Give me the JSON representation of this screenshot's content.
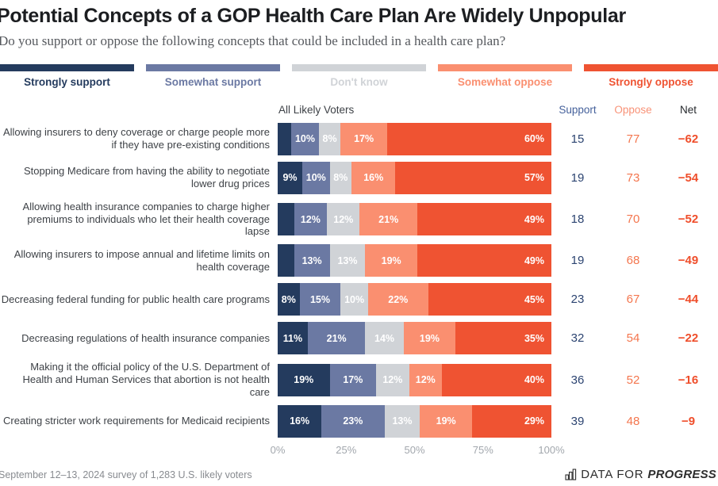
{
  "title": "Potential Concepts of a GOP Health Care Plan Are Widely Unpopular",
  "subtitle": "Do you support or oppose the following concepts that could be included in a health care plan?",
  "columns": {
    "group": "All Likely Voters",
    "support": "Support",
    "oppose": "Oppose",
    "net": "Net"
  },
  "chart_data": {
    "type": "bar",
    "variant": "stacked-horizontal",
    "series": [
      "Strongly support",
      "Somewhat support",
      "Don't know",
      "Somewhat oppose",
      "Strongly oppose"
    ],
    "series_colors": [
      "#243b5e",
      "#6b79a3",
      "#d0d3d7",
      "#fa8f70",
      "#ef5332"
    ],
    "categories": [
      "Allowing insurers to deny coverage or charge people more if they have pre-existing conditions",
      "Stopping Medicare from having the ability to negotiate lower drug prices",
      "Allowing health insurance companies to charge higher premiums to individuals who let their health coverage lapse",
      "Allowing insurers to impose annual and lifetime limits on health coverage",
      "Decreasing federal funding for public health care programs",
      "Decreasing regulations of health insurance companies",
      "Making it the official policy of the U.S. Department of Health and Human Services that abortion is not health care",
      "Creating stricter work requirements for Medicaid recipients"
    ],
    "rows": [
      {
        "values": [
          5,
          10,
          8,
          17,
          60
        ],
        "support": 15,
        "oppose": 77,
        "net": "−62"
      },
      {
        "values": [
          9,
          10,
          8,
          16,
          57
        ],
        "support": 19,
        "oppose": 73,
        "net": "−54"
      },
      {
        "values": [
          6,
          12,
          12,
          21,
          49
        ],
        "support": 18,
        "oppose": 70,
        "net": "−52"
      },
      {
        "values": [
          6,
          13,
          13,
          19,
          49
        ],
        "support": 19,
        "oppose": 68,
        "net": "−49"
      },
      {
        "values": [
          8,
          15,
          10,
          22,
          45
        ],
        "support": 23,
        "oppose": 67,
        "net": "−44"
      },
      {
        "values": [
          11,
          21,
          14,
          19,
          35
        ],
        "support": 32,
        "oppose": 54,
        "net": "−22"
      },
      {
        "values": [
          19,
          17,
          12,
          12,
          40
        ],
        "support": 36,
        "oppose": 52,
        "net": "−16"
      },
      {
        "values": [
          16,
          23,
          13,
          19,
          29
        ],
        "support": 39,
        "oppose": 48,
        "net": "−9"
      }
    ],
    "x_ticks": [
      "0%",
      "25%",
      "50%",
      "75%",
      "100%"
    ],
    "xlim": [
      0,
      100
    ],
    "segment_label_min_value": 7,
    "legend_position": "top",
    "grid": false
  },
  "footer": {
    "source": "September 12–13, 2024 survey of 1,283 U.S. likely voters",
    "brand_icon": "bar-chart-icon",
    "brand_prefix": "DATA FOR",
    "brand_suffix": "PROGRESS"
  }
}
